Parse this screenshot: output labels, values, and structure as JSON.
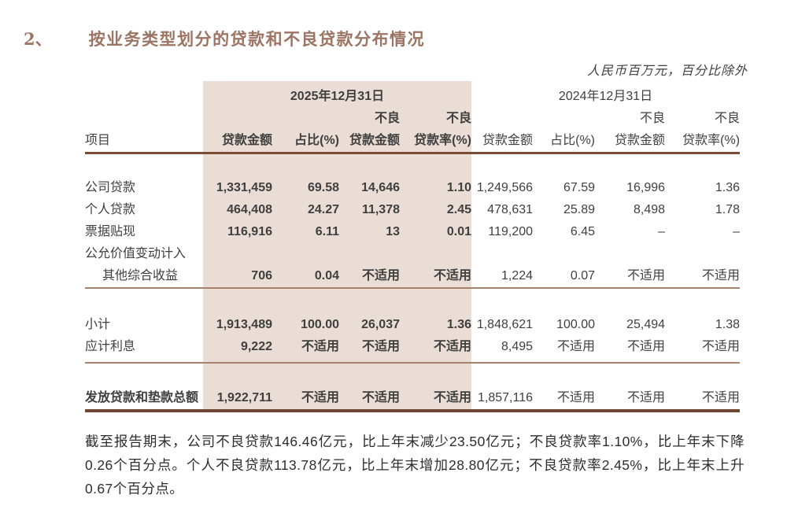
{
  "heading": {
    "number": "2、",
    "title": "按业务类型划分的贷款和不良贷款分布情况"
  },
  "unit_note": "人民币百万元，百分比除外",
  "table": {
    "item_column_header": "项目",
    "periods": [
      {
        "label": "2025年12月31日"
      },
      {
        "label": "2024年12月31日"
      }
    ],
    "value_column_headers": [
      {
        "lines": [
          "贷款金额"
        ]
      },
      {
        "lines": [
          "占比(%)"
        ]
      },
      {
        "lines": [
          "不良",
          "贷款金额"
        ]
      },
      {
        "lines": [
          "不良",
          "贷款率(%)"
        ]
      }
    ],
    "groups": [
      {
        "rows": [
          {
            "label_lines": [
              "公司贷款"
            ],
            "bold": false,
            "v2025": [
              "1,331,459",
              "69.58",
              "14,646",
              "1.10"
            ],
            "v2024": [
              "1,249,566",
              "67.59",
              "16,996",
              "1.36"
            ]
          },
          {
            "label_lines": [
              "个人贷款"
            ],
            "bold": false,
            "v2025": [
              "464,408",
              "24.27",
              "11,378",
              "2.45"
            ],
            "v2024": [
              "478,631",
              "25.89",
              "8,498",
              "1.78"
            ]
          },
          {
            "label_lines": [
              "票据贴现"
            ],
            "bold": false,
            "v2025": [
              "116,916",
              "6.11",
              "13",
              "0.01"
            ],
            "v2024": [
              "119,200",
              "6.45",
              "–",
              "–"
            ]
          },
          {
            "label_lines": [
              "公允价值变动计入",
              "其他综合收益"
            ],
            "bold": false,
            "v2025": [
              "706",
              "0.04",
              "不适用",
              "不适用"
            ],
            "v2024": [
              "1,224",
              "0.07",
              "不适用",
              "不适用"
            ]
          }
        ]
      },
      {
        "rows": [
          {
            "label_lines": [
              "小计"
            ],
            "bold": false,
            "v2025": [
              "1,913,489",
              "100.00",
              "26,037",
              "1.36"
            ],
            "v2024": [
              "1,848,621",
              "100.00",
              "25,494",
              "1.38"
            ]
          },
          {
            "label_lines": [
              "应计利息"
            ],
            "bold": false,
            "v2025": [
              "9,222",
              "不适用",
              "不适用",
              "不适用"
            ],
            "v2024": [
              "8,495",
              "不适用",
              "不适用",
              "不适用"
            ]
          }
        ]
      },
      {
        "rows": [
          {
            "label_lines": [
              "发放贷款和垫款总额"
            ],
            "bold": true,
            "v2025": [
              "1,922,711",
              "不适用",
              "不适用",
              "不适用"
            ],
            "v2024": [
              "1,857,116",
              "不适用",
              "不适用",
              "不适用"
            ]
          }
        ]
      }
    ]
  },
  "footnote": "截至报告期末，公司不良贷款146.46亿元，比上年末减少23.50亿元；不良贷款率1.10%，比上年末下降0.26个百分点。个人不良贷款113.78亿元，比上年末增加28.80亿元；不良贷款率2.45%，比上年末上升0.67个百分点。",
  "colors": {
    "accent_brown": "#9c7464",
    "highlight_bg": "#eaddd6",
    "rule_dark": "#7b4b33",
    "rule_bottom": "#6f4631",
    "rule_light": "#a8816d"
  }
}
